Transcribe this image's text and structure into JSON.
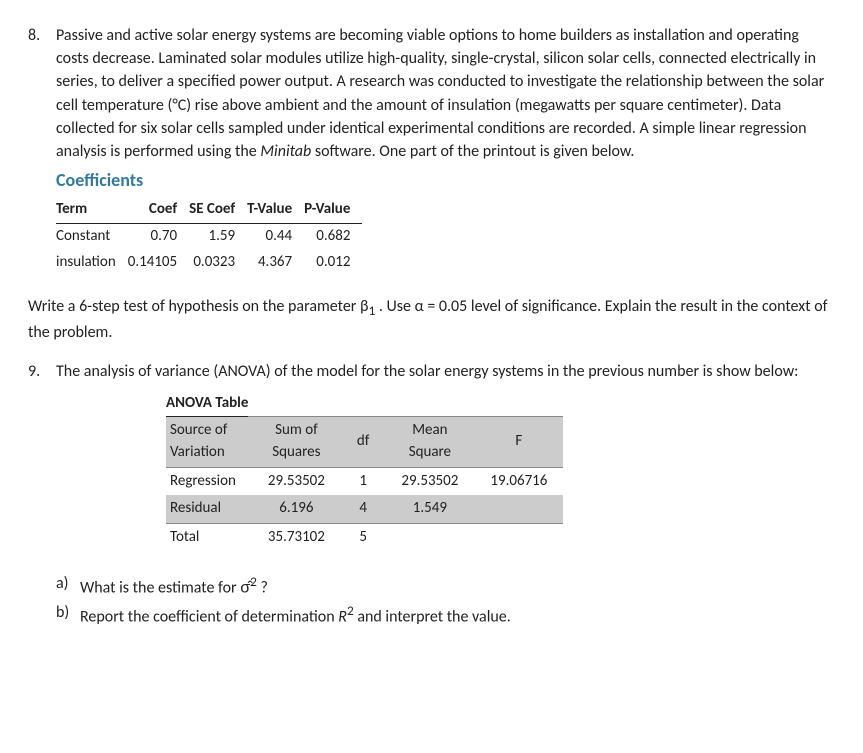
{
  "q8": {
    "number": "8.",
    "text": "Passive and active solar energy systems are becoming viable options to home builders as installation and operating costs decrease. Laminated solar modules utilize high-quality, single-crystal, silicon solar cells, connected electrically in series, to deliver a specified power output. A research was conducted to investigate the relationship between the solar cell temperature (°C) rise above ambient and the amount of insulation (megawatts per square centimeter). Data collected for six solar cells sampled under identical experimental conditions are recorded. A simple linear regression analysis is performed using the ",
    "software": "Minitab",
    "text2": " software. One part of the printout is given below.",
    "coeff_heading": "Coefficients",
    "coeff_table": {
      "headers": [
        "Term",
        "Coef",
        "SE Coef",
        "T-Value",
        "P-Value"
      ],
      "rows": [
        [
          "Constant",
          "0.70",
          "1.59",
          "0.44",
          "0.682"
        ],
        [
          "insulation",
          "0.14105",
          "0.0323",
          "4.367",
          "0.012"
        ]
      ]
    },
    "instruction_a": "Write a 6-step test of hypothesis on the parameter β",
    "instruction_sub": "1",
    "instruction_b": " . Use α = 0.05 level of significance. Explain the result in the context of the problem."
  },
  "q9": {
    "number": "9.",
    "text": "The analysis of variance (ANOVA) of the model for the solar energy systems in the previous number is show below:",
    "anova_heading": "ANOVA Table",
    "anova_table": {
      "headers": [
        "Source of Variation",
        "Sum of Squares",
        "df",
        "Mean Square",
        "F"
      ],
      "rows": [
        {
          "cells": [
            "Regression",
            "29.53502",
            "1",
            "29.53502",
            "19.06716"
          ],
          "class": ""
        },
        {
          "cells": [
            "Residual",
            "6.196",
            "4",
            "1.549",
            ""
          ],
          "class": "residual"
        },
        {
          "cells": [
            "Total",
            "35.73102",
            "5",
            "",
            ""
          ],
          "class": "total"
        }
      ]
    },
    "parts": [
      {
        "label": "a)",
        "text_a": "What is the estimate for σ̂",
        "sup": "2",
        "text_b": " ?"
      },
      {
        "label": "b)",
        "text_a": "Report the coefficient of determination ",
        "ital": "R",
        "sup": "2",
        "text_b": " and interpret the value."
      }
    ]
  }
}
